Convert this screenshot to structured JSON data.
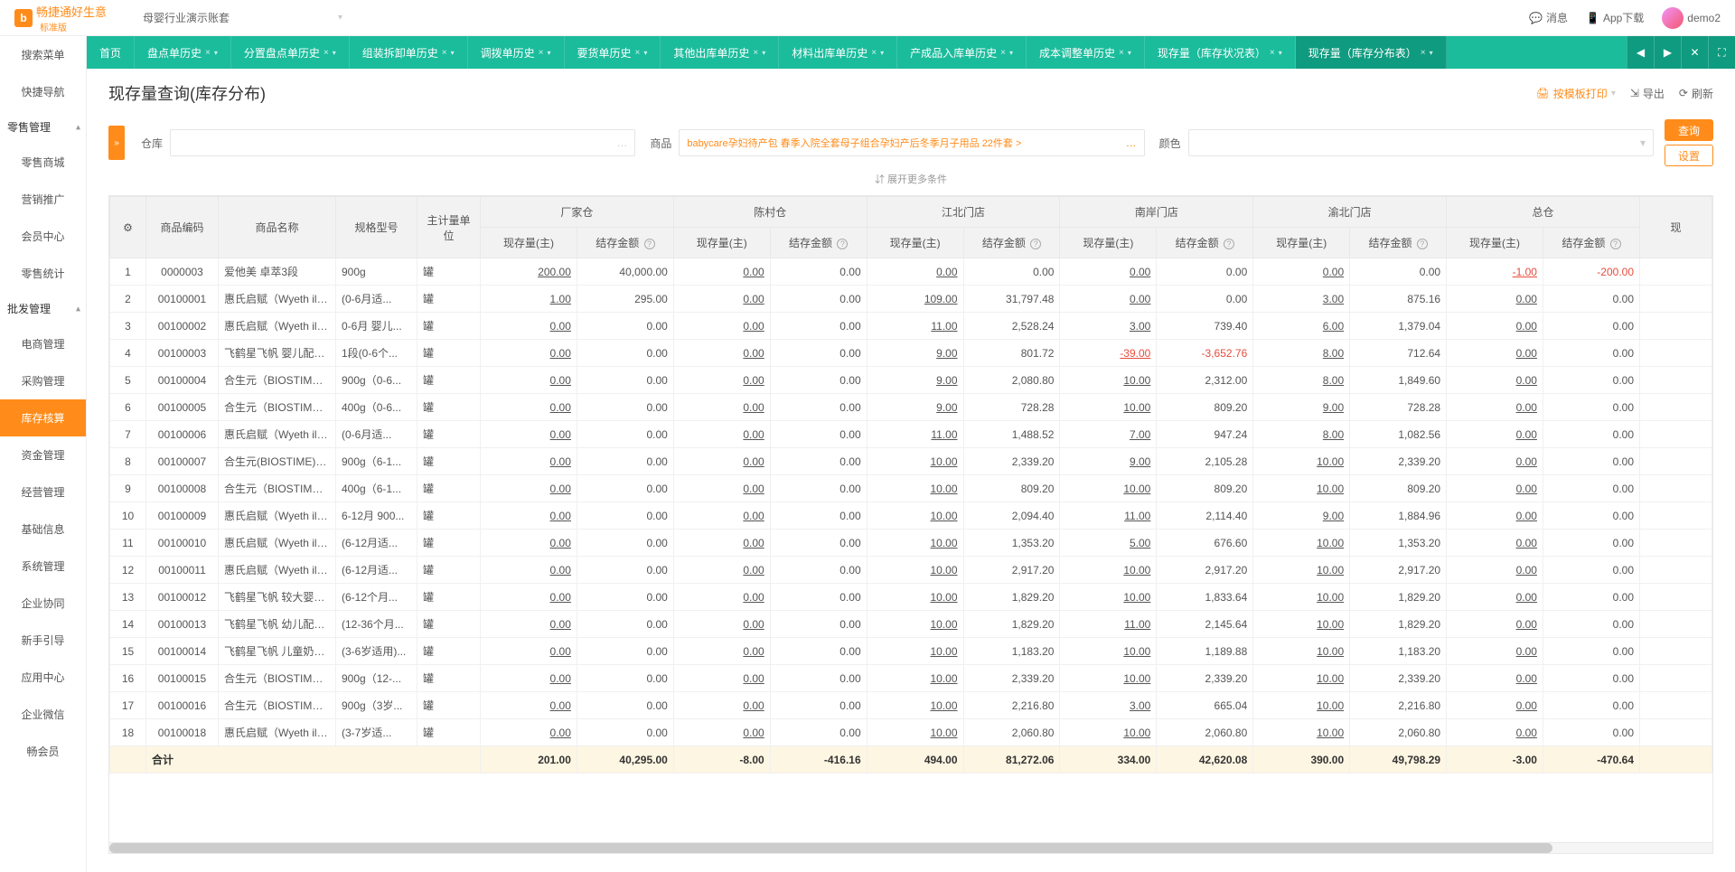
{
  "header": {
    "logo_text": "畅捷通好生意",
    "logo_sub": "标准版",
    "account": "母婴行业演示账套",
    "msg": "消息",
    "app": "App下载",
    "user": "demo2"
  },
  "sidebar": {
    "search": "搜索菜单",
    "quick": "快捷导航",
    "groups": [
      {
        "title": "零售管理",
        "open": true,
        "items": [
          "零售商城",
          "营销推广",
          "会员中心",
          "零售统计"
        ]
      },
      {
        "title": "批发管理",
        "open": true,
        "items": [
          "电商管理",
          "采购管理",
          "库存核算",
          "资金管理",
          "经营管理",
          "基础信息",
          "系统管理",
          "企业协同",
          "新手引导",
          "应用中心",
          "企业微信",
          "畅会员"
        ],
        "active": "库存核算"
      }
    ]
  },
  "tabs": {
    "home": "首页",
    "items": [
      "盘点单历史",
      "分置盘点单历史",
      "组装拆卸单历史",
      "调拨单历史",
      "要货单历史",
      "其他出库单历史",
      "材料出库单历史",
      "产成品入库单历史",
      "成本调整单历史",
      "现存量（库存状况表）",
      "现存量（库存分布表）"
    ],
    "activeIndex": 10
  },
  "page": {
    "title": "现存量查询(库存分布)",
    "print": "按模板打印",
    "export": "导出",
    "refresh": "刷新"
  },
  "search": {
    "warehouse_label": "仓库",
    "product_label": "商品",
    "product_value": "babycare孕妇待产包 春季入院全套母子组合孕妇产后冬季月子用品 22件套 >",
    "color_label": "颜色",
    "query": "查询",
    "settings": "设置",
    "expand": "展开更多条件"
  },
  "table": {
    "topHeaders": [
      "商品编码",
      "商品名称",
      "规格型号",
      "主计量单位"
    ],
    "warehouses": [
      "厂家仓",
      "陈村仓",
      "江北门店",
      "南岸门店",
      "渝北门店",
      "总仓"
    ],
    "subQty": "现存量(主)",
    "subAmt": "结存金额",
    "lastCol": "现",
    "rows": [
      {
        "idx": 1,
        "code": "0000003",
        "name": "爱他美 卓萃3段",
        "spec": "900g",
        "unit": "罐",
        "v": [
          [
            "200.00",
            "40,000.00"
          ],
          [
            "0.00",
            "0.00"
          ],
          [
            "0.00",
            "0.00"
          ],
          [
            "0.00",
            "0.00"
          ],
          [
            "0.00",
            "0.00"
          ],
          [
            "-1.00",
            "-200.00"
          ]
        ]
      },
      {
        "idx": 2,
        "code": "00100001",
        "name": "惠氏启赋（Wyeth illu...",
        "spec": "(0-6月适...",
        "unit": "罐",
        "v": [
          [
            "1.00",
            "295.00"
          ],
          [
            "0.00",
            "0.00"
          ],
          [
            "109.00",
            "31,797.48"
          ],
          [
            "0.00",
            "0.00"
          ],
          [
            "3.00",
            "875.16"
          ],
          [
            "0.00",
            "0.00"
          ]
        ]
      },
      {
        "idx": 3,
        "code": "00100002",
        "name": "惠氏启赋（Wyeth illu...",
        "spec": "0-6月 婴儿...",
        "unit": "罐",
        "v": [
          [
            "0.00",
            "0.00"
          ],
          [
            "0.00",
            "0.00"
          ],
          [
            "11.00",
            "2,528.24"
          ],
          [
            "3.00",
            "739.40"
          ],
          [
            "6.00",
            "1,379.04"
          ],
          [
            "0.00",
            "0.00"
          ]
        ]
      },
      {
        "idx": 4,
        "code": "00100003",
        "name": "飞鹤星飞帆 婴儿配方奶...",
        "spec": "1段(0-6个...",
        "unit": "罐",
        "v": [
          [
            "0.00",
            "0.00"
          ],
          [
            "0.00",
            "0.00"
          ],
          [
            "9.00",
            "801.72"
          ],
          [
            "-39.00",
            "-3,652.76"
          ],
          [
            "8.00",
            "712.64"
          ],
          [
            "0.00",
            "0.00"
          ]
        ]
      },
      {
        "idx": 5,
        "code": "00100004",
        "name": "合生元（BIOSTIME）...",
        "spec": "900g（0-6...",
        "unit": "罐",
        "v": [
          [
            "0.00",
            "0.00"
          ],
          [
            "0.00",
            "0.00"
          ],
          [
            "9.00",
            "2,080.80"
          ],
          [
            "10.00",
            "2,312.00"
          ],
          [
            "8.00",
            "1,849.60"
          ],
          [
            "0.00",
            "0.00"
          ]
        ]
      },
      {
        "idx": 6,
        "code": "00100005",
        "name": "合生元（BIOSTIME）...",
        "spec": "400g（0-6...",
        "unit": "罐",
        "v": [
          [
            "0.00",
            "0.00"
          ],
          [
            "0.00",
            "0.00"
          ],
          [
            "9.00",
            "728.28"
          ],
          [
            "10.00",
            "809.20"
          ],
          [
            "9.00",
            "728.28"
          ],
          [
            "0.00",
            "0.00"
          ]
        ]
      },
      {
        "idx": 7,
        "code": "00100006",
        "name": "惠氏启赋（Wyeth illu...",
        "spec": "(0-6月适...",
        "unit": "罐",
        "v": [
          [
            "0.00",
            "0.00"
          ],
          [
            "0.00",
            "0.00"
          ],
          [
            "11.00",
            "1,488.52"
          ],
          [
            "7.00",
            "947.24"
          ],
          [
            "8.00",
            "1,082.56"
          ],
          [
            "0.00",
            "0.00"
          ]
        ]
      },
      {
        "idx": 8,
        "code": "00100007",
        "name": "合生元(BIOSTIME)派...",
        "spec": "900g（6-1...",
        "unit": "罐",
        "v": [
          [
            "0.00",
            "0.00"
          ],
          [
            "0.00",
            "0.00"
          ],
          [
            "10.00",
            "2,339.20"
          ],
          [
            "9.00",
            "2,105.28"
          ],
          [
            "10.00",
            "2,339.20"
          ],
          [
            "0.00",
            "0.00"
          ]
        ]
      },
      {
        "idx": 9,
        "code": "00100008",
        "name": "合生元（BIOSTIME）...",
        "spec": "400g（6-1...",
        "unit": "罐",
        "v": [
          [
            "0.00",
            "0.00"
          ],
          [
            "0.00",
            "0.00"
          ],
          [
            "10.00",
            "809.20"
          ],
          [
            "10.00",
            "809.20"
          ],
          [
            "10.00",
            "809.20"
          ],
          [
            "0.00",
            "0.00"
          ]
        ]
      },
      {
        "idx": 10,
        "code": "00100009",
        "name": "惠氏启赋（Wyeth illu...",
        "spec": "6-12月 900...",
        "unit": "罐",
        "v": [
          [
            "0.00",
            "0.00"
          ],
          [
            "0.00",
            "0.00"
          ],
          [
            "10.00",
            "2,094.40"
          ],
          [
            "11.00",
            "2,114.40"
          ],
          [
            "9.00",
            "1,884.96"
          ],
          [
            "0.00",
            "0.00"
          ]
        ]
      },
      {
        "idx": 11,
        "code": "00100010",
        "name": "惠氏启赋（Wyeth illu...",
        "spec": "(6-12月适...",
        "unit": "罐",
        "v": [
          [
            "0.00",
            "0.00"
          ],
          [
            "0.00",
            "0.00"
          ],
          [
            "10.00",
            "1,353.20"
          ],
          [
            "5.00",
            "676.60"
          ],
          [
            "10.00",
            "1,353.20"
          ],
          [
            "0.00",
            "0.00"
          ]
        ]
      },
      {
        "idx": 12,
        "code": "00100011",
        "name": "惠氏启赋（Wyeth illu...",
        "spec": "(6-12月适...",
        "unit": "罐",
        "v": [
          [
            "0.00",
            "0.00"
          ],
          [
            "0.00",
            "0.00"
          ],
          [
            "10.00",
            "2,917.20"
          ],
          [
            "10.00",
            "2,917.20"
          ],
          [
            "10.00",
            "2,917.20"
          ],
          [
            "0.00",
            "0.00"
          ]
        ]
      },
      {
        "idx": 13,
        "code": "00100012",
        "name": "飞鹤星飞帆 较大婴儿配...",
        "spec": "(6-12个月...",
        "unit": "罐",
        "v": [
          [
            "0.00",
            "0.00"
          ],
          [
            "0.00",
            "0.00"
          ],
          [
            "10.00",
            "1,829.20"
          ],
          [
            "10.00",
            "1,833.64"
          ],
          [
            "10.00",
            "1,829.20"
          ],
          [
            "0.00",
            "0.00"
          ]
        ]
      },
      {
        "idx": 14,
        "code": "00100013",
        "name": "飞鹤星飞帆 幼儿配方奶...",
        "spec": "(12-36个月...",
        "unit": "罐",
        "v": [
          [
            "0.00",
            "0.00"
          ],
          [
            "0.00",
            "0.00"
          ],
          [
            "10.00",
            "1,829.20"
          ],
          [
            "11.00",
            "2,145.64"
          ],
          [
            "10.00",
            "1,829.20"
          ],
          [
            "0.00",
            "0.00"
          ]
        ]
      },
      {
        "idx": 15,
        "code": "00100014",
        "name": "飞鹤星飞帆 儿童奶粉 4...",
        "spec": "(3-6岁适用)...",
        "unit": "罐",
        "v": [
          [
            "0.00",
            "0.00"
          ],
          [
            "0.00",
            "0.00"
          ],
          [
            "10.00",
            "1,183.20"
          ],
          [
            "10.00",
            "1,189.88"
          ],
          [
            "10.00",
            "1,183.20"
          ],
          [
            "0.00",
            "0.00"
          ]
        ]
      },
      {
        "idx": 16,
        "code": "00100015",
        "name": "合生元（BIOSTIME）...",
        "spec": "900g（12-...",
        "unit": "罐",
        "v": [
          [
            "0.00",
            "0.00"
          ],
          [
            "0.00",
            "0.00"
          ],
          [
            "10.00",
            "2,339.20"
          ],
          [
            "10.00",
            "2,339.20"
          ],
          [
            "10.00",
            "2,339.20"
          ],
          [
            "0.00",
            "0.00"
          ]
        ]
      },
      {
        "idx": 17,
        "code": "00100016",
        "name": "合生元（BIOSTIME）...",
        "spec": "900g（3岁...",
        "unit": "罐",
        "v": [
          [
            "0.00",
            "0.00"
          ],
          [
            "0.00",
            "0.00"
          ],
          [
            "10.00",
            "2,216.80"
          ],
          [
            "3.00",
            "665.04"
          ],
          [
            "10.00",
            "2,216.80"
          ],
          [
            "0.00",
            "0.00"
          ]
        ]
      },
      {
        "idx": 18,
        "code": "00100018",
        "name": "惠氏启赋（Wyeth illu...",
        "spec": "(3-7岁适...",
        "unit": "罐",
        "v": [
          [
            "0.00",
            "0.00"
          ],
          [
            "0.00",
            "0.00"
          ],
          [
            "10.00",
            "2,060.80"
          ],
          [
            "10.00",
            "2,060.80"
          ],
          [
            "10.00",
            "2,060.80"
          ],
          [
            "0.00",
            "0.00"
          ]
        ]
      }
    ],
    "totals": {
      "label": "合计",
      "v": [
        [
          "201.00",
          "40,295.00"
        ],
        [
          "-8.00",
          "-416.16"
        ],
        [
          "494.00",
          "81,272.06"
        ],
        [
          "334.00",
          "42,620.08"
        ],
        [
          "390.00",
          "49,798.29"
        ],
        [
          "-3.00",
          "-470.64"
        ]
      ]
    }
  }
}
